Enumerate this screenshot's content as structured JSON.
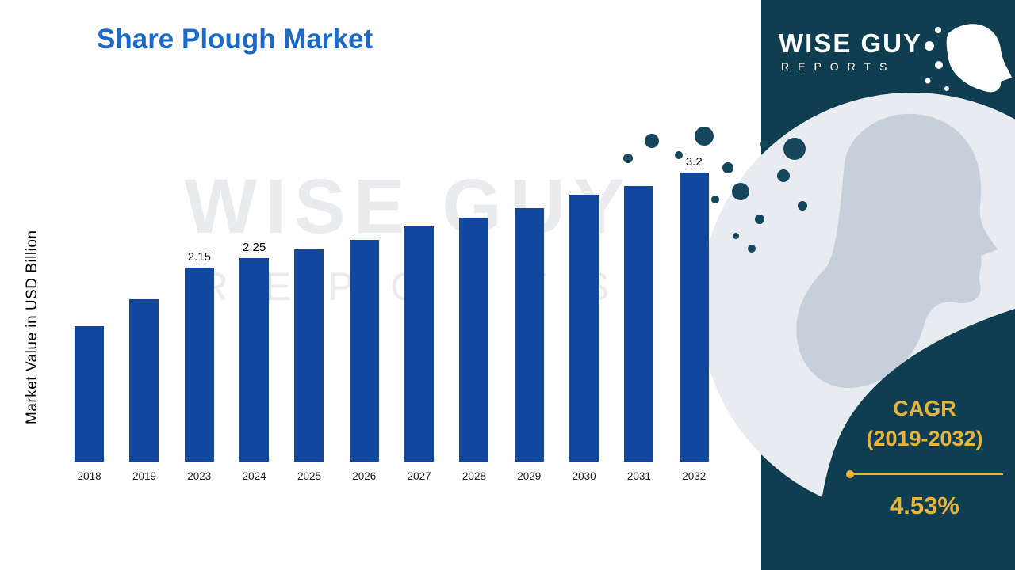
{
  "title": {
    "text": "Share Plough Market",
    "color": "#1b69c8"
  },
  "chart_data": {
    "type": "bar",
    "title": "Share Plough Market",
    "categories": [
      "2018",
      "2019",
      "2023",
      "2024",
      "2025",
      "2026",
      "2027",
      "2028",
      "2029",
      "2030",
      "2031",
      "2032"
    ],
    "values": [
      1.5,
      1.8,
      2.15,
      2.25,
      2.35,
      2.45,
      2.6,
      2.7,
      2.8,
      2.95,
      3.05,
      3.2
    ],
    "data_labels": {
      "2023": "2.15",
      "2024": "2.25",
      "2032": "3.2"
    },
    "xlabel": "",
    "ylabel": "Market Value in USD Billion",
    "ylim": [
      0,
      3.4
    ],
    "bar_color": "#11479e",
    "grid": false,
    "legend": false
  },
  "watermark": {
    "line1": "WISE GUY",
    "line2": "REPORTS"
  },
  "sidebar": {
    "background_color": "#0f3e50",
    "circle_color": "#e8ebf0",
    "accent_color": "#eab43c",
    "logo": {
      "line1": "WISE GUY",
      "line2": "REPORTS",
      "face_icon": "head-profile-dots"
    },
    "cagr": {
      "label": "CAGR",
      "period": "(2019-2032)",
      "value": "4.53%"
    }
  }
}
